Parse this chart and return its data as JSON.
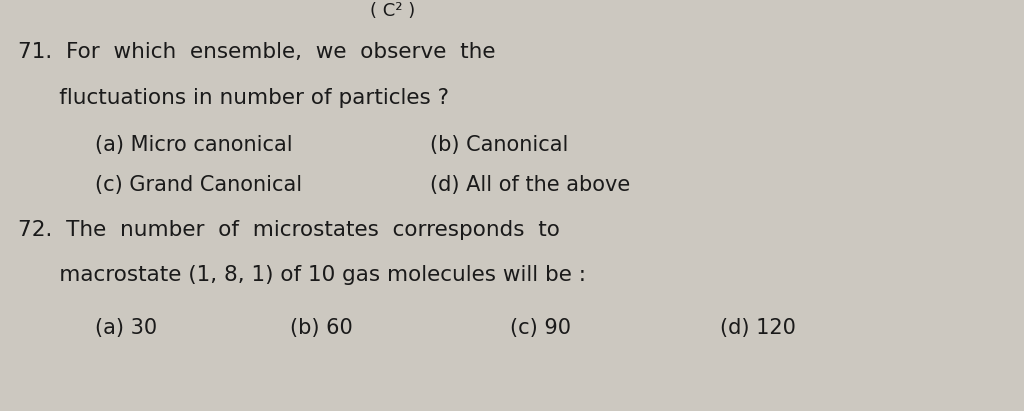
{
  "background_color": "#ccc8c0",
  "text_color": "#1a1a1a",
  "top_fragment": "( C² )",
  "q71_line1": "71.  For  which  ensemble,  we  observe  the",
  "q71_line2": "      fluctuations in number of particles ?",
  "q71_a": "(a) Micro canonical",
  "q71_b": "(b) Canonical",
  "q71_c": "(c) Grand Canonical",
  "q71_d": "(d) All of the above",
  "q72_line1": "72.  The  number  of  microstates  corresponds  to",
  "q72_line2": "      macrostate (1, 8, 1) of 10 gas molecules will be :",
  "q72_a": "(a) 30",
  "q72_b": "(b) 60",
  "q72_c": "(c) 90",
  "q72_d": "(d) 120",
  "font_size_main": 15.5,
  "font_size_options": 15,
  "font_size_top": 13
}
